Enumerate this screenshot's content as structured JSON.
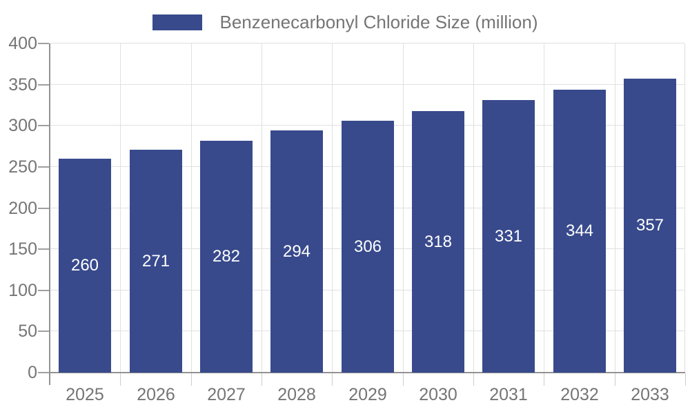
{
  "legend": {
    "label": "Benzenecarbonyl Chloride Size (million)"
  },
  "chart_data": {
    "type": "bar",
    "title": "Benzenecarbonyl Chloride Size (million)",
    "categories": [
      "2025",
      "2026",
      "2027",
      "2028",
      "2029",
      "2030",
      "2031",
      "2032",
      "2033"
    ],
    "values": [
      260,
      271,
      282,
      294,
      306,
      318,
      331,
      344,
      357
    ],
    "series": [
      {
        "name": "Benzenecarbonyl Chloride Size (million)",
        "values": [
          260,
          271,
          282,
          294,
          306,
          318,
          331,
          344,
          357
        ]
      }
    ],
    "xlabel": "",
    "ylabel": "",
    "ylim": [
      0,
      400
    ],
    "y_ticks": [
      0,
      50,
      100,
      150,
      200,
      250,
      300,
      350,
      400
    ],
    "grid": true,
    "legend_position": "top",
    "value_labels": "inside-center",
    "colors": {
      "bar": "#384a8c",
      "value_label": "#ffffff",
      "axis_text": "#757575",
      "gridline": "#e0e0e0",
      "axis_line": "#929292"
    }
  }
}
